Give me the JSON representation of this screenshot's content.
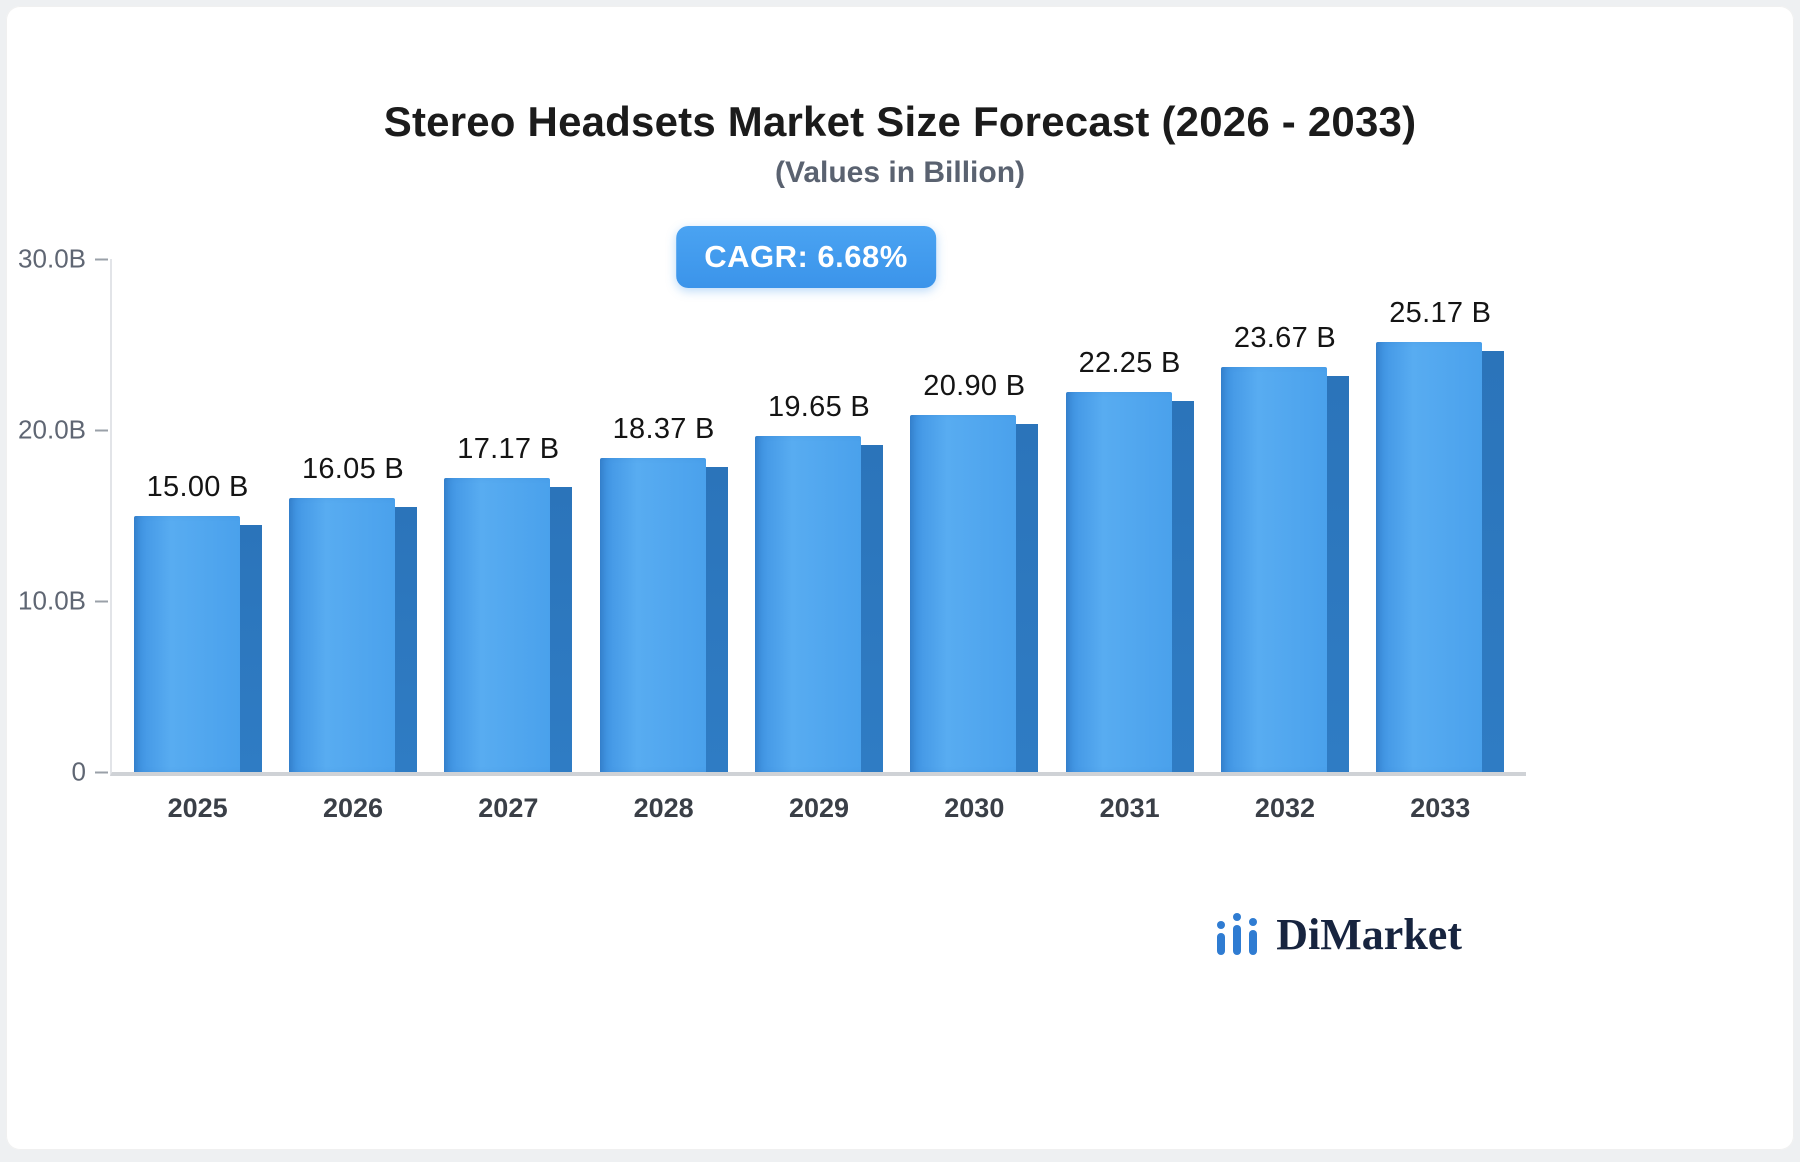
{
  "header": {
    "title": "Stereo Headsets Market Size Forecast (2026 - 2033)",
    "subtitle": "(Values in Billion)"
  },
  "badge": {
    "label": "CAGR: 6.68%"
  },
  "chart_data": {
    "type": "bar",
    "title": "Stereo Headsets Market Size Forecast (2026 - 2033)",
    "subtitle": "(Values in Billion)",
    "categories": [
      "2025",
      "2026",
      "2027",
      "2028",
      "2029",
      "2030",
      "2031",
      "2032",
      "2033"
    ],
    "values": [
      15.0,
      16.05,
      17.17,
      18.37,
      19.65,
      20.9,
      22.25,
      23.67,
      25.17
    ],
    "value_labels": [
      "15.00 B",
      "16.05 B",
      "17.17 B",
      "18.37 B",
      "19.65 B",
      "20.90 B",
      "22.25 B",
      "23.67 B",
      "25.17 B"
    ],
    "xlabel": "",
    "ylabel": "",
    "ylim": [
      0,
      30
    ],
    "yticks": [
      {
        "value": 30,
        "label": "30.0B"
      },
      {
        "value": 20,
        "label": "20.0B"
      },
      {
        "value": 10,
        "label": "10.0B"
      },
      {
        "value": 0,
        "label": "0"
      }
    ],
    "grid": false,
    "legend": "none",
    "bar_face_color": "#4AA1EC",
    "bar_side_color": "#2B74BA"
  },
  "logo": {
    "brand": "DiMarket",
    "icon": "bar-chart-icon",
    "icon_color": "#2F7CD2",
    "text_color": "#17243F"
  }
}
